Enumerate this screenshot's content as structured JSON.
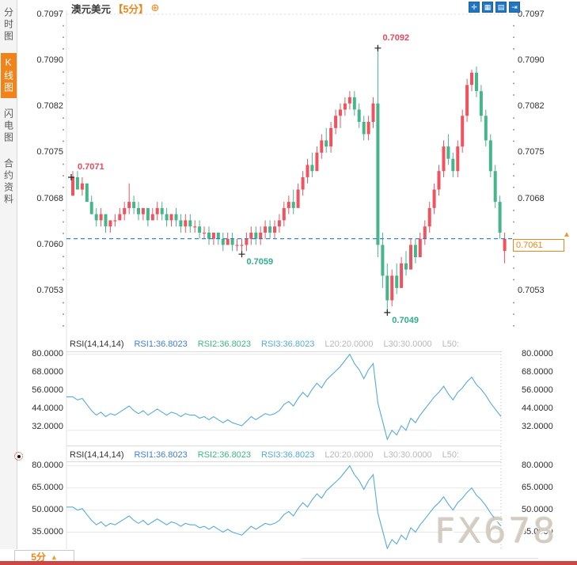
{
  "sidebar": {
    "tabs": [
      {
        "label": "分时图",
        "active": false
      },
      {
        "label": "K线图",
        "active": true
      },
      {
        "label": "闪电图",
        "active": false
      },
      {
        "label": "合约资料",
        "active": false
      }
    ]
  },
  "header": {
    "symbol": "澳元美元",
    "timeframe": "【5分】",
    "add_icon": "⊕"
  },
  "toolbar": {
    "icons": [
      {
        "name": "pan-icon",
        "glyph": "✛"
      },
      {
        "name": "axis-zoom-icon",
        "glyph": "▦"
      },
      {
        "name": "axis-scale-icon",
        "glyph": "▤"
      },
      {
        "name": "jump-to-latest-icon",
        "glyph": "⇥"
      }
    ]
  },
  "colors": {
    "up": "#ef5360",
    "down": "#47b58a",
    "accent_orange": "#f08418",
    "rsi_line": "#57abdc",
    "current_line": "#1e78d8",
    "annotation_red": "#e8485c",
    "annotation_green": "#2fae8a",
    "icon_blue": "#2176c0",
    "grid": "#e8e8e8",
    "axis_text": "#2e2e2e"
  },
  "bottom": {
    "timeframe": "5分",
    "arrow": "▲"
  },
  "watermark": "FX678",
  "current_price_arrow": "▲",
  "chart_data": {
    "type": "candlestick+rsi",
    "symbol": "澳元美元",
    "timeframe": "5分",
    "main": {
      "y_axis": [
        {
          "text": "0.7097",
          "v": 0.70975
        },
        {
          "text": "0.7090",
          "v": 0.709
        },
        {
          "text": "0.7082",
          "v": 0.70825
        },
        {
          "text": "0.7075",
          "v": 0.7075
        },
        {
          "text": "0.7068",
          "v": 0.70675
        },
        {
          "text": "0.7060",
          "v": 0.706
        },
        {
          "text": "0.7053",
          "v": 0.70525
        }
      ],
      "ylim": [
        0.70451,
        0.70975
      ],
      "current_price": {
        "text": "0.7061",
        "value": 0.7061
      },
      "annotations": [
        {
          "text": "0.7071",
          "price": 0.7071,
          "index": 0,
          "side": "above",
          "color": "#e8485c"
        },
        {
          "text": "0.7059",
          "price": 0.70585,
          "index": 36,
          "side": "below",
          "color": "#2fae8a"
        },
        {
          "text": "0.7092",
          "price": 0.7092,
          "index": 65,
          "side": "above",
          "color": "#e8485c"
        },
        {
          "text": "0.7049",
          "price": 0.7049,
          "index": 67,
          "side": "below",
          "color": "#2fae8a"
        }
      ],
      "candles": [
        [
          0.7068,
          0.7072,
          0.7068,
          0.7071
        ],
        [
          0.7071,
          0.7072,
          0.7069,
          0.7069
        ],
        [
          0.7069,
          0.7071,
          0.7068,
          0.707
        ],
        [
          0.707,
          0.707,
          0.7067,
          0.7067
        ],
        [
          0.7067,
          0.7068,
          0.7065,
          0.7065
        ],
        [
          0.7065,
          0.7066,
          0.7063,
          0.7064
        ],
        [
          0.7064,
          0.7066,
          0.7063,
          0.7065
        ],
        [
          0.7065,
          0.7065,
          0.7062,
          0.7063
        ],
        [
          0.7063,
          0.7064,
          0.7062,
          0.7064
        ],
        [
          0.7064,
          0.7065,
          0.7063,
          0.7064
        ],
        [
          0.7064,
          0.7066,
          0.7064,
          0.7065
        ],
        [
          0.7065,
          0.7067,
          0.7064,
          0.7066
        ],
        [
          0.7066,
          0.707,
          0.7065,
          0.7067
        ],
        [
          0.7067,
          0.7068,
          0.7065,
          0.7066
        ],
        [
          0.7066,
          0.7067,
          0.7064,
          0.7065
        ],
        [
          0.7065,
          0.7066,
          0.7064,
          0.7066
        ],
        [
          0.7066,
          0.7066,
          0.7063,
          0.7064
        ],
        [
          0.7064,
          0.7066,
          0.7064,
          0.7065
        ],
        [
          0.7065,
          0.7067,
          0.7064,
          0.7066
        ],
        [
          0.7066,
          0.7067,
          0.7064,
          0.7065
        ],
        [
          0.7065,
          0.7066,
          0.7063,
          0.7064
        ],
        [
          0.7064,
          0.7065,
          0.7063,
          0.7065
        ],
        [
          0.7065,
          0.7066,
          0.7063,
          0.7064
        ],
        [
          0.7064,
          0.7065,
          0.7062,
          0.7063
        ],
        [
          0.7063,
          0.7065,
          0.7062,
          0.7064
        ],
        [
          0.7064,
          0.7065,
          0.7062,
          0.7063
        ],
        [
          0.7063,
          0.7064,
          0.7062,
          0.7063
        ],
        [
          0.7063,
          0.7064,
          0.7061,
          0.7062
        ],
        [
          0.7062,
          0.7063,
          0.7061,
          0.7062
        ],
        [
          0.7062,
          0.7063,
          0.706,
          0.7061
        ],
        [
          0.7061,
          0.7062,
          0.706,
          0.7062
        ],
        [
          0.7062,
          0.7062,
          0.706,
          0.7061
        ],
        [
          0.7061,
          0.7062,
          0.7059,
          0.706
        ],
        [
          0.706,
          0.7062,
          0.706,
          0.7061
        ],
        [
          0.7061,
          0.7062,
          0.7059,
          0.706
        ],
        [
          0.706,
          0.7061,
          0.7059,
          0.706
        ],
        [
          0.706,
          0.7061,
          0.70585,
          0.706
        ],
        [
          0.706,
          0.7062,
          0.7059,
          0.7061
        ],
        [
          0.7061,
          0.7063,
          0.706,
          0.7062
        ],
        [
          0.7062,
          0.7063,
          0.706,
          0.7061
        ],
        [
          0.7061,
          0.7063,
          0.706,
          0.7062
        ],
        [
          0.7062,
          0.7064,
          0.7061,
          0.7063
        ],
        [
          0.7063,
          0.7064,
          0.7061,
          0.7062
        ],
        [
          0.7062,
          0.7064,
          0.7061,
          0.7063
        ],
        [
          0.7063,
          0.7065,
          0.7062,
          0.7064
        ],
        [
          0.7064,
          0.7067,
          0.7063,
          0.7066
        ],
        [
          0.7066,
          0.7068,
          0.7065,
          0.7067
        ],
        [
          0.7067,
          0.7069,
          0.7065,
          0.7066
        ],
        [
          0.7066,
          0.707,
          0.7066,
          0.7069
        ],
        [
          0.7069,
          0.7072,
          0.7068,
          0.7071
        ],
        [
          0.7071,
          0.7074,
          0.707,
          0.7073
        ],
        [
          0.7073,
          0.7075,
          0.7071,
          0.7072
        ],
        [
          0.7072,
          0.7076,
          0.7072,
          0.7075
        ],
        [
          0.7075,
          0.7078,
          0.7074,
          0.7077
        ],
        [
          0.7077,
          0.7079,
          0.7075,
          0.7076
        ],
        [
          0.7076,
          0.708,
          0.7075,
          0.7079
        ],
        [
          0.7079,
          0.7082,
          0.7078,
          0.7081
        ],
        [
          0.7081,
          0.7083,
          0.7079,
          0.7082
        ],
        [
          0.7082,
          0.7084,
          0.7081,
          0.7083
        ],
        [
          0.7083,
          0.7085,
          0.7082,
          0.7084
        ],
        [
          0.7084,
          0.7085,
          0.7081,
          0.7082
        ],
        [
          0.7082,
          0.7083,
          0.7079,
          0.708
        ],
        [
          0.708,
          0.7081,
          0.7077,
          0.7078
        ],
        [
          0.7078,
          0.7081,
          0.7077,
          0.708
        ],
        [
          0.708,
          0.7084,
          0.7079,
          0.7083
        ],
        [
          0.7083,
          0.7092,
          0.7058,
          0.706
        ],
        [
          0.706,
          0.7062,
          0.7053,
          0.7055
        ],
        [
          0.7055,
          0.7057,
          0.7049,
          0.7051
        ],
        [
          0.7051,
          0.7056,
          0.705,
          0.7055
        ],
        [
          0.7055,
          0.7057,
          0.7052,
          0.7053
        ],
        [
          0.7053,
          0.7058,
          0.7053,
          0.7057
        ],
        [
          0.7057,
          0.7059,
          0.7055,
          0.7056
        ],
        [
          0.7056,
          0.7061,
          0.7056,
          0.706
        ],
        [
          0.706,
          0.7061,
          0.7057,
          0.7058
        ],
        [
          0.7058,
          0.7062,
          0.7058,
          0.7061
        ],
        [
          0.7061,
          0.7064,
          0.706,
          0.7063
        ],
        [
          0.7063,
          0.7067,
          0.7062,
          0.7066
        ],
        [
          0.7066,
          0.707,
          0.7065,
          0.7069
        ],
        [
          0.7069,
          0.7073,
          0.7068,
          0.7072
        ],
        [
          0.7072,
          0.7077,
          0.7071,
          0.7076
        ],
        [
          0.7076,
          0.7078,
          0.7073,
          0.7074
        ],
        [
          0.7074,
          0.7075,
          0.7071,
          0.7072
        ],
        [
          0.7072,
          0.7077,
          0.7071,
          0.7076
        ],
        [
          0.7076,
          0.7082,
          0.7075,
          0.7081
        ],
        [
          0.7081,
          0.7087,
          0.708,
          0.7086
        ],
        [
          0.7086,
          0.70885,
          0.7085,
          0.7088
        ],
        [
          0.7088,
          0.7089,
          0.7084,
          0.7085
        ],
        [
          0.7085,
          0.7086,
          0.708,
          0.7081
        ],
        [
          0.7081,
          0.7082,
          0.7076,
          0.7077
        ],
        [
          0.7077,
          0.7078,
          0.7071,
          0.7072
        ],
        [
          0.7072,
          0.7073,
          0.7066,
          0.7067
        ],
        [
          0.7067,
          0.7068,
          0.7061,
          0.7062
        ],
        [
          0.7059,
          0.7062,
          0.7057,
          0.7061
        ]
      ]
    },
    "rsi": {
      "header": [
        {
          "text": "RSI(14,14,14)",
          "color": "#333333"
        },
        {
          "text": "RSI1:36.8023",
          "color": "#3d7fd6"
        },
        {
          "text": "RSI2:36.8023",
          "color": "#3cb87e"
        },
        {
          "text": "RSI3:36.8023",
          "color": "#56aadd"
        },
        {
          "text": "L20:20.0000",
          "color": "#b8b8b8"
        },
        {
          "text": "L30:30.0000",
          "color": "#b8b8b8"
        },
        {
          "text": "L50:",
          "color": "#b8b8b8"
        }
      ],
      "values": [
        52,
        50,
        51,
        47,
        43,
        40,
        42,
        39,
        41,
        40,
        42,
        44,
        46,
        43,
        41,
        43,
        40,
        42,
        44,
        42,
        40,
        42,
        41,
        39,
        41,
        40,
        40,
        38,
        39,
        37,
        39,
        37,
        35,
        37,
        35,
        34,
        33,
        36,
        39,
        37,
        39,
        41,
        40,
        41,
        43,
        47,
        49,
        46,
        51,
        55,
        52,
        57,
        61,
        58,
        63,
        66,
        69,
        72,
        76,
        80,
        74,
        70,
        64,
        70,
        74,
        48,
        36,
        24,
        30,
        27,
        33,
        30,
        38,
        35,
        40,
        44,
        48,
        52,
        55,
        59,
        54,
        50,
        55,
        58,
        62,
        65,
        60,
        57,
        53,
        48,
        44,
        40,
        36.8
      ],
      "panels": [
        {
          "labels": [
            {
              "text": "80.0000",
              "v": 80
            },
            {
              "text": "68.0000",
              "v": 68
            },
            {
              "text": "56.0000",
              "v": 56
            },
            {
              "text": "44.0000",
              "v": 44
            },
            {
              "text": "32.0000",
              "v": 32
            }
          ],
          "ylim": [
            20,
            82
          ],
          "grid": [
            80,
            30
          ]
        },
        {
          "labels": [
            {
              "text": "80.0000",
              "v": 80
            },
            {
              "text": "65.0000",
              "v": 65
            },
            {
              "text": "50.0000",
              "v": 50
            },
            {
              "text": "35.0000",
              "v": 35
            }
          ],
          "ylim": [
            23.5,
            83
          ],
          "grid": [
            80,
            65,
            50,
            35
          ]
        }
      ]
    }
  }
}
